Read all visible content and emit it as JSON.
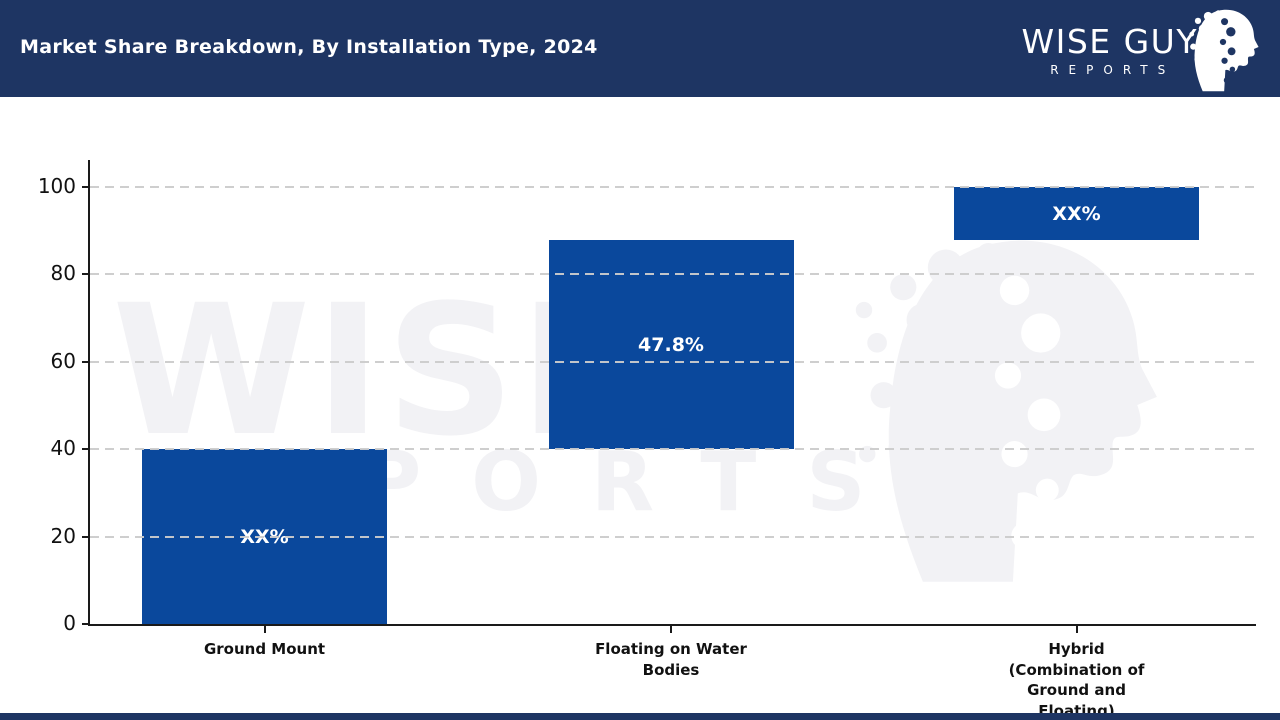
{
  "header": {
    "title": "Market Share Breakdown, By Installation Type, 2024",
    "logo": {
      "line1": "WISE GUY",
      "line2": "REPORTS"
    }
  },
  "watermark": {
    "line1": "WISE",
    "line2": "REPORTS"
  },
  "chart_data": {
    "type": "bar",
    "subtype": "waterfall-segments",
    "title": "Market Share Breakdown, By Installation Type, 2024",
    "categories": [
      "Ground Mount",
      "Floating on Water\nBodies",
      "Hybrid\n(Combination of\nGround and\nFloating)"
    ],
    "segments": [
      {
        "category": "Ground Mount",
        "start": 0,
        "end": 40,
        "label": "XX%"
      },
      {
        "category": "Floating on Water Bodies",
        "start": 40,
        "end": 87.8,
        "label": "47.8%"
      },
      {
        "category": "Hybrid (Combination of Ground and Floating)",
        "start": 87.8,
        "end": 100,
        "label": "XX%"
      }
    ],
    "xlabel": "",
    "ylabel": "",
    "ylim": [
      0,
      100
    ],
    "yticks": [
      0,
      20,
      40,
      60,
      80,
      100
    ],
    "grid": "horizontal-dashed",
    "legend": "none",
    "colors": {
      "bar": "#0a489c",
      "grid": "#cccccc",
      "axis": "#1a1a1a",
      "bar_label": "#ffffff"
    }
  }
}
